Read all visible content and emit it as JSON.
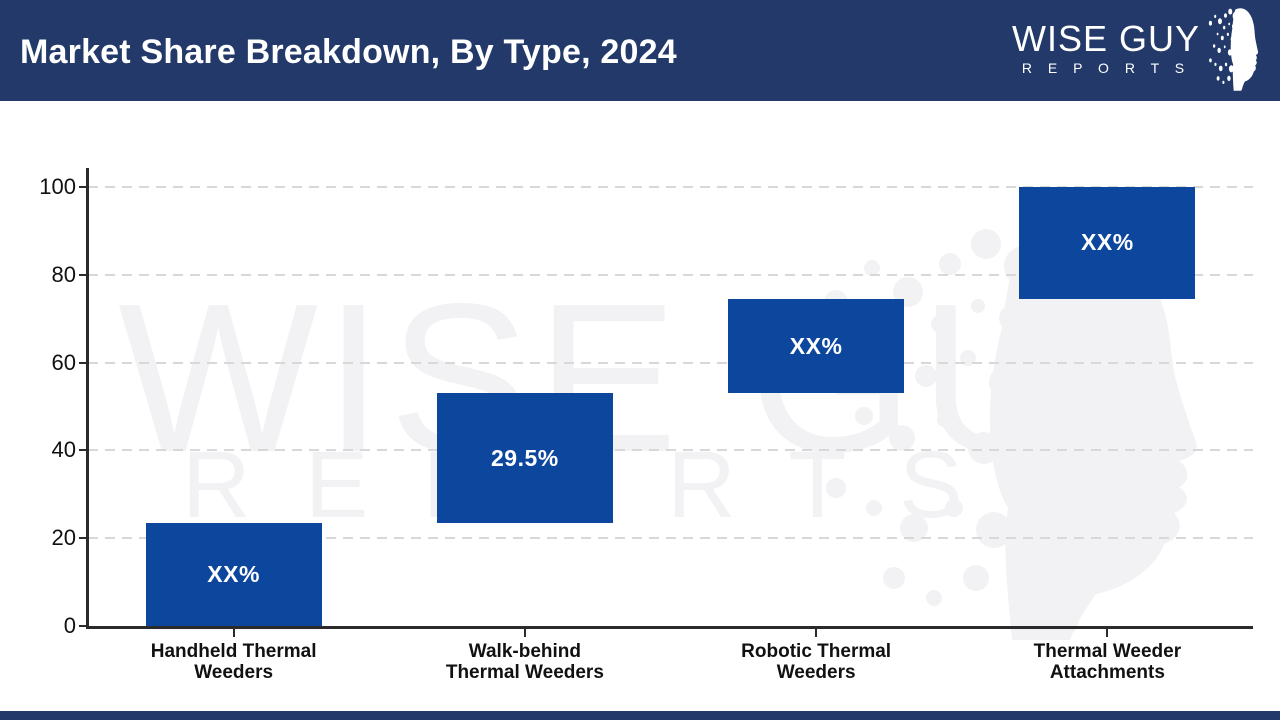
{
  "header": {
    "title": "Market Share Breakdown, By Type, 2024",
    "logo": {
      "wordmark": "WISE GUY",
      "subtitle": "R E P O R T S"
    }
  },
  "watermark": {
    "wordmark": "WISE GU",
    "subtitle": "R E P O R T S"
  },
  "colors": {
    "header_bg": "#22396a",
    "bar_fill": "#0c479d",
    "bar_label_text": "#ffffff",
    "gridline": "#d8d8d8",
    "axis": "#2b2b2b",
    "tick_text": "#111111",
    "watermark": "#f2f2f4"
  },
  "chart_data": {
    "type": "bar",
    "variant": "waterfall-breakdown",
    "title": "Market Share Breakdown, By Type, 2024",
    "categories": [
      "Handheld Thermal Weeders",
      "Walk-behind Thermal Weeders",
      "Robotic Thermal Weeders",
      "Thermal Weeder Attachments"
    ],
    "segments": [
      {
        "category": "Handheld Thermal Weeders",
        "label_lines": [
          "Handheld Thermal",
          "Weeders"
        ],
        "start": 0,
        "end": 23.5,
        "value_label": "XX%"
      },
      {
        "category": "Walk-behind Thermal Weeders",
        "label_lines": [
          "Walk-behind",
          "Thermal Weeders"
        ],
        "start": 23.5,
        "end": 53,
        "value_label": "29.5%",
        "value": 29.5
      },
      {
        "category": "Robotic Thermal Weeders",
        "label_lines": [
          "Robotic Thermal",
          "Weeders"
        ],
        "start": 53,
        "end": 74.5,
        "value_label": "XX%"
      },
      {
        "category": "Thermal Weeder Attachments",
        "label_lines": [
          "Thermal Weeder",
          "Attachments"
        ],
        "start": 74.5,
        "end": 100,
        "value_label": "XX%"
      }
    ],
    "y_ticks": [
      0,
      20,
      40,
      60,
      80,
      100
    ],
    "ylim": [
      0,
      105
    ],
    "xlabel": "",
    "ylabel": "",
    "grid": "horizontal-dashed",
    "legend_position": "none"
  }
}
